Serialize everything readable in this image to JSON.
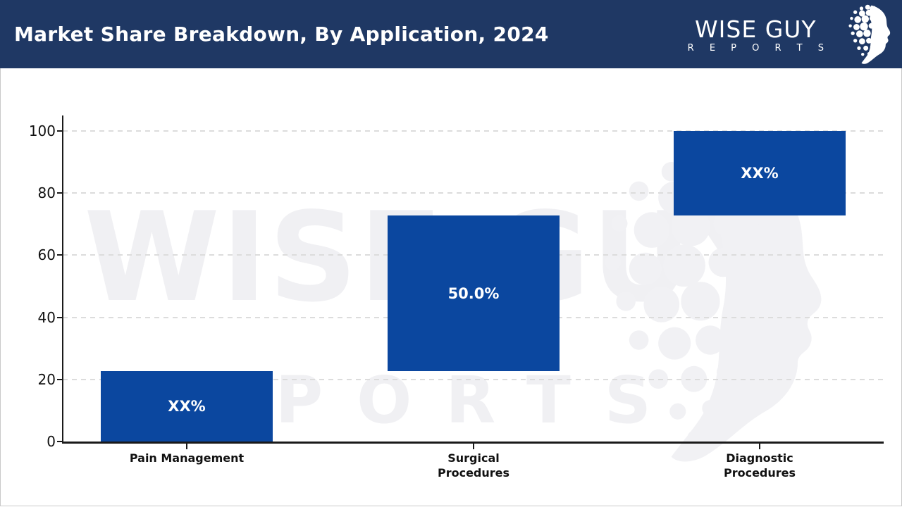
{
  "header": {
    "title": "Market Share Breakdown, By Application, 2024",
    "logo": {
      "line1": "WISE GUY",
      "line2": "R E P O R T S"
    }
  },
  "watermark": {
    "line1": "WISE GUY",
    "line2": "REPORTS"
  },
  "colors": {
    "header_bg": "#1f3864",
    "title_text": "#ffffff",
    "bar": "#0b479f",
    "bar_label": "#ffffff",
    "grid": "#dcdcdc",
    "axis": "#1a1a1a",
    "tick_label": "#111111",
    "watermark": "#f0f0f3",
    "page_border": "#c9c9c9"
  },
  "chart_data": {
    "type": "bar",
    "subtype": "waterfall",
    "title": "Market Share Breakdown, By Application, 2024",
    "categories": [
      "Pain Management",
      "Surgical\nProcedures",
      "Diagnostic\nProcedures"
    ],
    "segments": [
      {
        "category": "Pain Management",
        "start": 0,
        "end": 22.7,
        "label": "XX%"
      },
      {
        "category": "Surgical Procedures",
        "start": 22.7,
        "end": 72.7,
        "label": "50.0%"
      },
      {
        "category": "Diagnostic Procedures",
        "start": 72.7,
        "end": 100,
        "label": "XX%"
      }
    ],
    "xlabel": "",
    "ylabel": "",
    "yticks": [
      0,
      20,
      40,
      60,
      80,
      100
    ],
    "ylim": [
      0,
      105
    ],
    "grid": "horizontal-dashed",
    "legend": "none"
  }
}
